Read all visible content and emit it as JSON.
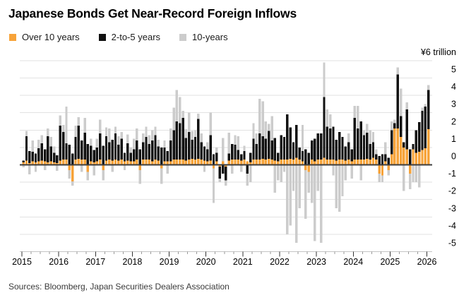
{
  "header": {
    "title": "Japanese Bonds Get Near-Record Foreign Inflows"
  },
  "legend": [
    {
      "label": "Over 10 years",
      "color": "#f7a339"
    },
    {
      "label": "2-to-5 years",
      "color": "#111111"
    },
    {
      "label": "10-years",
      "color": "#cccccc"
    }
  ],
  "source": "Sources: Bloomberg, Japan Securities Dealers Association",
  "chart_data": {
    "type": "bar",
    "stacked": true,
    "title": "Japanese Bonds Get Near-Record Foreign Inflows",
    "unit_label": "¥6 trillion",
    "freq": "monthly",
    "start": "2015-01",
    "end": "2026-01",
    "x_years": [
      2015,
      2016,
      2017,
      2018,
      2019,
      2020,
      2021,
      2022,
      2023,
      2024,
      2025,
      2026
    ],
    "ylim": [
      -5,
      6
    ],
    "yticks": [
      5,
      4,
      3,
      2,
      1,
      0,
      -1,
      -2,
      -3,
      -4,
      -5
    ],
    "grid": true,
    "legend_position": "top-left",
    "colors": {
      "gridline": "#e2e2e2",
      "zero_line": "#3d3d3d",
      "axis_line": "#c4c4c4",
      "major_tick": "#333333",
      "minor_tick": "#9a9a9a",
      "tick_label": "#000000"
    },
    "series": [
      {
        "name": "Over 10 years",
        "color": "#f7a339",
        "values": [
          0.15,
          0.25,
          0.1,
          0.2,
          0.15,
          0.2,
          0.25,
          0.2,
          0.15,
          0.2,
          0.15,
          0.1,
          0.25,
          0.3,
          0.3,
          -0.3,
          -0.95,
          0.3,
          0.35,
          0.3,
          0.3,
          -0.4,
          0.2,
          0.15,
          0.2,
          0.3,
          -0.3,
          0.25,
          0.3,
          0.25,
          0.3,
          0.25,
          0.3,
          0.2,
          0.25,
          0.2,
          0.2,
          0.3,
          -0.3,
          0.3,
          0.3,
          0.3,
          0.2,
          0.3,
          0.25,
          -0.2,
          0.2,
          0.2,
          0.2,
          0.3,
          0.3,
          0.3,
          0.3,
          0.25,
          0.3,
          0.35,
          0.3,
          0.35,
          0.3,
          0.25,
          0.2,
          0.25,
          -0.2,
          0.2,
          -0.1,
          0.2,
          -0.1,
          0.25,
          0.3,
          0.3,
          0.3,
          0.25,
          0.3,
          0.2,
          0.15,
          0.3,
          0.3,
          0.3,
          0.35,
          0.3,
          0.35,
          0.3,
          0.25,
          0.2,
          0.3,
          0.3,
          0.3,
          0.35,
          0.3,
          0.4,
          0.3,
          0.2,
          -0.3,
          -0.4,
          0.3,
          0.2,
          0.3,
          0.3,
          0.4,
          0.3,
          0.3,
          0.3,
          0.25,
          0.3,
          0.3,
          0.25,
          0.3,
          0.2,
          0.3,
          0.3,
          0.3,
          0.3,
          0.35,
          0.3,
          0.4,
          0.3,
          -0.5,
          -0.6,
          0.2,
          -0.3,
          0.6,
          2.1,
          2.1,
          1.6,
          1.0,
          0.9,
          -0.5,
          0.9,
          0.7,
          0.75,
          0.85,
          0.95,
          2.05
        ]
      },
      {
        "name": "2-to-5 years",
        "color": "#111111",
        "values": [
          0.1,
          1.4,
          0.7,
          0.55,
          0.5,
          0.75,
          1.0,
          0.7,
          1.5,
          0.85,
          0.55,
          0.45,
          2.0,
          1.6,
          0.95,
          1.15,
          0.65,
          1.3,
          1.9,
          1.1,
          1.55,
          1.2,
          0.9,
          0.7,
          0.8,
          1.5,
          1.1,
          1.4,
          1.0,
          1.2,
          1.5,
          0.9,
          1.2,
          0.5,
          1.0,
          0.5,
          0.7,
          1.1,
          0.9,
          1.0,
          1.3,
          0.9,
          1.2,
          1.4,
          0.8,
          1.0,
          0.8,
          0.6,
          1.2,
          1.7,
          2.2,
          2.1,
          2.4,
          1.3,
          1.6,
          1.1,
          1.3,
          2.3,
          1.0,
          0.8,
          0.7,
          1.45,
          0.6,
          0.5,
          -0.7,
          -0.5,
          -0.8,
          0.4,
          0.9,
          0.85,
          0.55,
          0.35,
          0.5,
          -0.5,
          0.55,
          1.2,
          0.9,
          1.5,
          1.3,
          1.2,
          1.6,
          1.1,
          1.3,
          0.5,
          1.4,
          1.3,
          2.6,
          1.8,
          1.0,
          1.9,
          0.7,
          0.6,
          0.9,
          0.7,
          1.1,
          1.3,
          1.5,
          1.5,
          3.5,
          1.9,
          1.8,
          1.9,
          1.2,
          1.6,
          1.3,
          0.8,
          1.0,
          0.7,
          2.4,
          1.8,
          2.2,
          1.4,
          1.5,
          0.9,
          0.9,
          0.3,
          0.5,
          0.6,
          0.4,
          0.4,
          1.4,
          0.3,
          3.1,
          1.2,
          0.3,
          2.3,
          0.9,
          0.3,
          1.3,
          1.7,
          2.25,
          2.4,
          2.25
        ]
      },
      {
        "name": "10-years",
        "color": "#cccccc",
        "values": [
          -0.15,
          0.3,
          -0.55,
          0.65,
          -0.4,
          0.5,
          0.45,
          -0.3,
          0.45,
          0.55,
          0.35,
          -0.35,
          0.6,
          0.4,
          2.1,
          -0.5,
          -0.25,
          0.65,
          0.5,
          -0.4,
          0.85,
          -0.5,
          0.4,
          -0.6,
          0.5,
          0.8,
          -0.6,
          0.5,
          0.8,
          -0.4,
          0.4,
          0.5,
          0.4,
          -0.3,
          0.5,
          0.3,
          0.6,
          0.7,
          -0.8,
          0.5,
          0.6,
          0.5,
          0.6,
          0.5,
          0.4,
          -0.9,
          0.4,
          -0.5,
          0.7,
          1.3,
          1.8,
          1.5,
          0.4,
          0.5,
          1.1,
          0.5,
          0.4,
          0.3,
          0.5,
          -0.4,
          0.4,
          1.3,
          -2.0,
          0.3,
          -0.2,
          1.35,
          -0.3,
          1.2,
          -0.5,
          0.55,
          0.8,
          -0.4,
          0.3,
          -0.7,
          -1.0,
          0.9,
          0.6,
          2.0,
          2.0,
          1.0,
          0.4,
          1.4,
          -1.6,
          -0.9,
          -1.0,
          -0.4,
          -4.0,
          -3.5,
          -1.5,
          -4.5,
          -2.5,
          1.5,
          -2.8,
          -1.2,
          -2.2,
          -4.4,
          -1.5,
          -4.5,
          2.0,
          1.0,
          0.8,
          -0.6,
          -2.5,
          -2.7,
          -1.8,
          -0.9,
          0.5,
          -0.8,
          0.7,
          1.3,
          -0.9,
          0.3,
          0.5,
          0.8,
          0.6,
          0.3,
          -0.5,
          -0.4,
          0.7,
          -0.3,
          0.5,
          0.2,
          0.4,
          1.6,
          -1.5,
          0.4,
          -0.9,
          -1.0,
          -1.0,
          -1.3,
          0.2,
          0.15,
          0.3
        ]
      }
    ]
  }
}
